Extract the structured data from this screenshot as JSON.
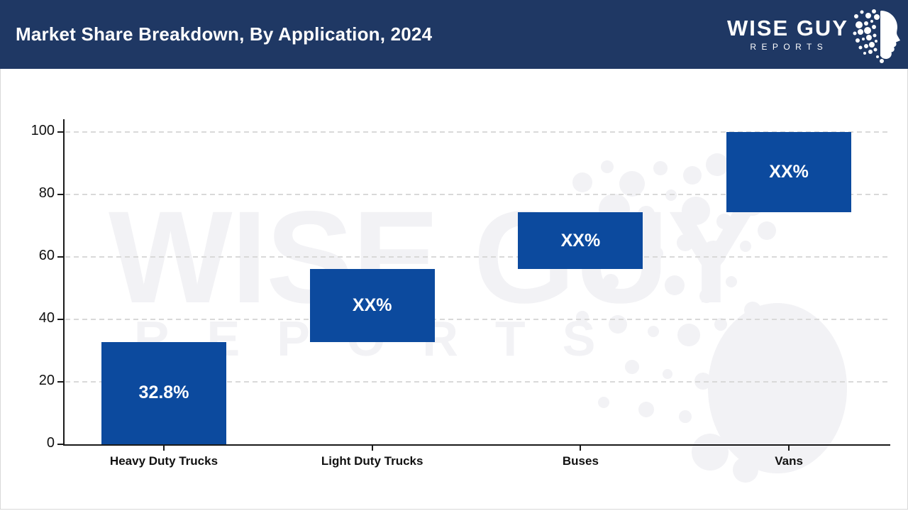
{
  "header": {
    "title": "Market Share Breakdown, By Application, 2024",
    "bg_color": "#1f3864",
    "logo": {
      "line1": "WISE GUY",
      "line2": "REPORTS"
    }
  },
  "watermark": {
    "line1": "WISE GUY",
    "line2": "REPORTS"
  },
  "chart_data": {
    "type": "waterfall",
    "title": "Market Share Breakdown, By Application, 2024",
    "categories": [
      "Heavy Duty Trucks",
      "Light Duty Trucks",
      "Buses",
      "Vans"
    ],
    "segments": [
      {
        "category": "Heavy Duty Trucks",
        "start": 0,
        "end": 32.8,
        "label": "32.8%"
      },
      {
        "category": "Light Duty Trucks",
        "start": 32.8,
        "end": 56.1,
        "label": "XX%"
      },
      {
        "category": "Buses",
        "start": 56.1,
        "end": 74.3,
        "label": "XX%"
      },
      {
        "category": "Vans",
        "start": 74.3,
        "end": 100,
        "label": "XX%"
      }
    ],
    "ylim": [
      0,
      100
    ],
    "yticks": [
      0,
      20,
      40,
      60,
      80,
      100
    ],
    "xlabel": "",
    "ylabel": "",
    "grid": "dashed-horizontal",
    "legend": "none",
    "bar_color": "#0c4a9e",
    "bar_label_color": "#ffffff",
    "axis_color": "#1a1a1a"
  }
}
